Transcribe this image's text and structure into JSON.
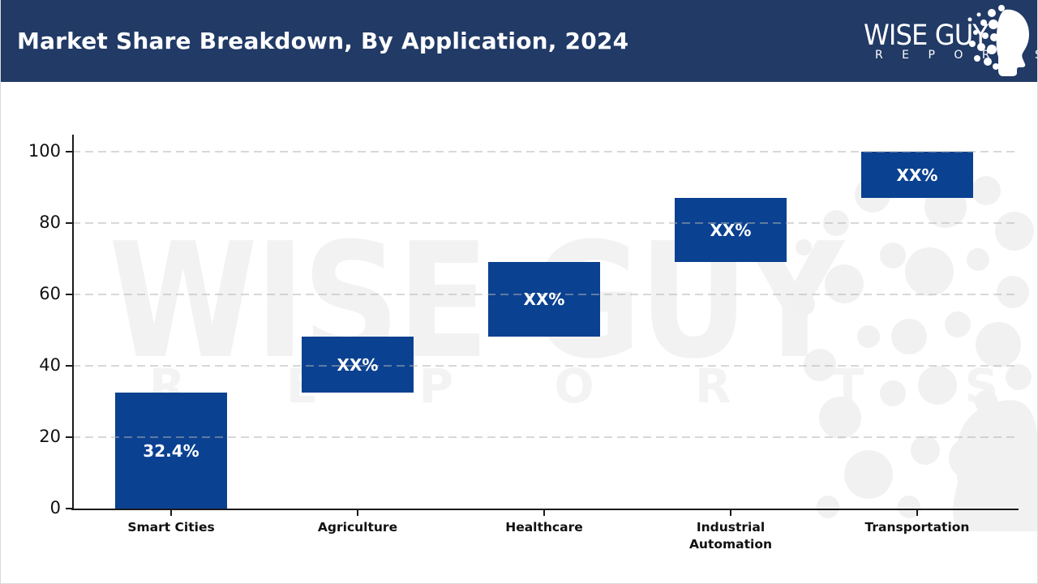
{
  "header": {
    "title": "Market Share Breakdown, By Application, 2024",
    "brand": {
      "line1": "WISE GUY",
      "line2": "R E P O R T S"
    }
  },
  "watermark": {
    "line1": "WISE GUY",
    "line2": "R E P O R T S"
  },
  "colors": {
    "header_bg": "#213a66",
    "bar_fill": "#0b4191",
    "bar_label_text": "#ffffff",
    "axis": "#1a1a1a",
    "grid": "#d8d8d8",
    "watermark": "#f2f2f2",
    "border": "#d9d9d9"
  },
  "chart_data": {
    "type": "bar",
    "subtype": "waterfall",
    "title": "Market Share Breakdown, By Application, 2024",
    "xlabel": "",
    "ylabel": "",
    "categories": [
      "Smart Cities",
      "Agriculture",
      "Healthcare",
      "Industrial Automation",
      "Transportation"
    ],
    "segments": [
      {
        "label": "Smart Cities",
        "start": 0,
        "end": 32.4,
        "value_label": "32.4%"
      },
      {
        "label": "Agriculture",
        "start": 32.4,
        "end": 48.2,
        "value_label": "XX%"
      },
      {
        "label": "Healthcare",
        "start": 48.2,
        "end": 69.0,
        "value_label": "XX%"
      },
      {
        "label": "Industrial Automation",
        "start": 69.0,
        "end": 87.0,
        "value_label": "XX%"
      },
      {
        "label": "Transportation",
        "start": 87.0,
        "end": 100.0,
        "value_label": "XX%"
      }
    ],
    "yticks": [
      0,
      20,
      40,
      60,
      80,
      100
    ],
    "ylim": [
      0,
      105
    ],
    "grid": "horizontal-dashed",
    "legend": "none"
  }
}
